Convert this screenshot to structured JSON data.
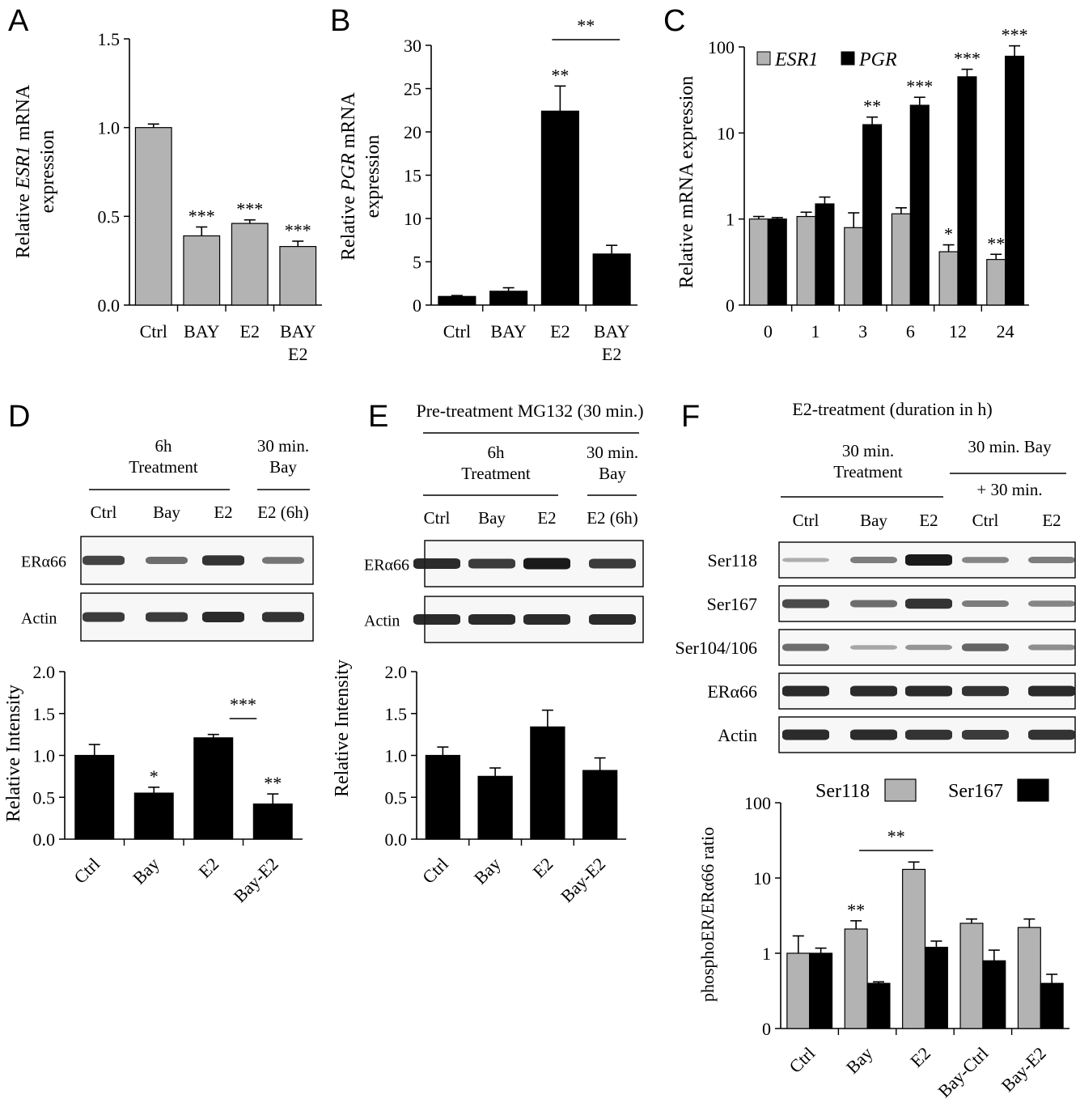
{
  "colors": {
    "gray": "#b3b3b3",
    "black": "#000000",
    "band": "#1a1a1a"
  },
  "chart_data": [
    {
      "id": "A",
      "panel_letter": "A",
      "type": "bar",
      "categories": [
        "Ctrl",
        "BAY",
        "E2",
        "BAY\nE2"
      ],
      "values": [
        1.0,
        0.39,
        0.46,
        0.33
      ],
      "errors": [
        0.02,
        0.05,
        0.02,
        0.03
      ],
      "colors": [
        "#b3b3b3",
        "#b3b3b3",
        "#b3b3b3",
        "#b3b3b3"
      ],
      "annotations": [
        "",
        "***",
        "***",
        "***"
      ],
      "ylabel_parts": [
        "Relative ",
        "ESR1",
        " mRNA"
      ],
      "ylabel_line2": "expression",
      "ylim": [
        0,
        1.5
      ],
      "ticks": [
        0,
        0.5,
        1.0,
        1.5
      ],
      "tick_labels": [
        "0.0",
        "0.5",
        "1.0",
        "1.5"
      ],
      "scale": "linear"
    },
    {
      "id": "B",
      "panel_letter": "B",
      "type": "bar",
      "categories": [
        "Ctrl",
        "BAY",
        "E2",
        "BAY\nE2"
      ],
      "values": [
        1.0,
        1.6,
        22.4,
        5.9
      ],
      "errors": [
        0.1,
        0.4,
        2.9,
        1.0
      ],
      "colors": [
        "#000000",
        "#000000",
        "#000000",
        "#000000"
      ],
      "annotations": [
        "",
        "",
        "**",
        ""
      ],
      "bracket": {
        "from": 2,
        "to": 3,
        "label": "**"
      },
      "ylabel_parts": [
        "Relative ",
        "PGR",
        " mRNA"
      ],
      "ylabel_line2": "expression",
      "ylim": [
        0,
        30
      ],
      "ticks": [
        0,
        5,
        10,
        15,
        20,
        25,
        30
      ],
      "tick_labels": [
        "0",
        "5",
        "10",
        "15",
        "20",
        "25",
        "30"
      ],
      "scale": "linear"
    },
    {
      "id": "C",
      "panel_letter": "C",
      "type": "bar",
      "scale": "log-like",
      "categories": [
        "0",
        "1",
        "3",
        "6",
        "12",
        "24"
      ],
      "series": [
        {
          "name": "ESR1",
          "color": "#b3b3b3",
          "values": [
            1.0,
            1.07,
            0.9,
            1.15,
            0.62,
            0.53
          ],
          "errors": [
            0.07,
            0.13,
            0.28,
            0.2,
            0.08,
            0.06
          ],
          "annotations": [
            "",
            "",
            "",
            "",
            "*",
            "**"
          ]
        },
        {
          "name": "PGR",
          "color": "#000000",
          "values": [
            1.0,
            1.5,
            12.5,
            21,
            45,
            78
          ],
          "errors": [
            0.04,
            0.3,
            2.8,
            5,
            10,
            25
          ],
          "annotations": [
            "",
            "",
            "**",
            "***",
            "***",
            "***"
          ]
        }
      ],
      "ylabel": "Relative  mRNA expression",
      "ticks": [
        0,
        1,
        10,
        100
      ],
      "tick_labels": [
        "0",
        "1",
        "10",
        "100"
      ]
    },
    {
      "id": "D",
      "panel_letter": "D",
      "type": "bar",
      "categories": [
        "Ctrl",
        "Bay",
        "E2",
        "Bay-E2"
      ],
      "values": [
        1.0,
        0.55,
        1.21,
        0.42
      ],
      "errors": [
        0.13,
        0.07,
        0.04,
        0.12
      ],
      "colors": [
        "#000000",
        "#000000",
        "#000000",
        "#000000"
      ],
      "annotations": [
        "",
        "*",
        "",
        "**"
      ],
      "bracket": {
        "from": 2,
        "to": 3,
        "label": "***"
      },
      "ylabel": "Relative  Intensity",
      "ylim": [
        0,
        2.0
      ],
      "ticks": [
        0,
        0.5,
        1.0,
        1.5,
        2.0
      ],
      "tick_labels": [
        "0.0",
        "0.5",
        "1.0",
        "1.5",
        "2.0"
      ],
      "scale": "linear"
    },
    {
      "id": "E",
      "panel_letter": "E",
      "type": "bar",
      "categories": [
        "Ctrl",
        "Bay",
        "E2",
        "Bay-E2"
      ],
      "values": [
        1.0,
        0.75,
        1.34,
        0.82
      ],
      "errors": [
        0.1,
        0.1,
        0.2,
        0.15
      ],
      "colors": [
        "#000000",
        "#000000",
        "#000000",
        "#000000"
      ],
      "annotations": [
        "",
        "",
        "",
        ""
      ],
      "ylabel": "Relative  Intensity",
      "ylim": [
        0,
        2.0
      ],
      "ticks": [
        0,
        0.5,
        1.0,
        1.5,
        2.0
      ],
      "tick_labels": [
        "0.0",
        "0.5",
        "1.0",
        "1.5",
        "2.0"
      ],
      "scale": "linear"
    },
    {
      "id": "F",
      "panel_letter": "F",
      "type": "bar",
      "scale": "log-like",
      "categories": [
        "Ctrl",
        "Bay",
        "E2",
        "Bay-Ctrl",
        "Bay-E2"
      ],
      "series": [
        {
          "name": "Ser118",
          "color": "#b3b3b3",
          "values": [
            1.0,
            2.1,
            13,
            2.5,
            2.2
          ],
          "errors": [
            0.7,
            0.6,
            3.3,
            0.35,
            0.65
          ],
          "annotations": [
            "",
            "**",
            "",
            "",
            ""
          ]
        },
        {
          "name": "Ser167",
          "color": "#000000",
          "values": [
            1.0,
            0.6,
            1.2,
            0.9,
            0.6
          ],
          "errors": [
            0.17,
            0.02,
            0.25,
            0.2,
            0.12
          ],
          "annotations": [
            "",
            "",
            "",
            "",
            ""
          ]
        }
      ],
      "bracket": {
        "from": 1,
        "to": 2,
        "label": "**"
      },
      "ylabel": "phosphoER/ERα66  ratio",
      "ticks": [
        0,
        1,
        10,
        100
      ],
      "tick_labels": [
        "0",
        "1",
        "10",
        "100"
      ]
    }
  ],
  "blots": {
    "D": {
      "group1": "6h\nTreatment",
      "group2": "30 min.\nBay",
      "lanes": [
        "Ctrl",
        "Bay",
        "E2",
        "E2 (6h)"
      ],
      "rows": [
        {
          "label": "ERα66",
          "intensity": [
            0.75,
            0.5,
            0.85,
            0.45
          ]
        },
        {
          "label": "Actin",
          "intensity": [
            0.8,
            0.8,
            0.9,
            0.85
          ]
        }
      ]
    },
    "E": {
      "header": "Pre-treatment MG132 (30 min.)",
      "group1": "6h\nTreatment",
      "group2": "30 min.\nBay",
      "lanes": [
        "Ctrl",
        "Bay",
        "E2",
        "E2 (6h)"
      ],
      "rows": [
        {
          "label": "ERα66",
          "intensity": [
            0.9,
            0.8,
            1.0,
            0.8
          ]
        },
        {
          "label": "Actin",
          "intensity": [
            0.9,
            0.9,
            0.9,
            0.9
          ]
        }
      ]
    },
    "F": {
      "header": "E2-treatment  (duration  in h)",
      "group1": "30 min.\nTreatment",
      "group2": "30 min. Bay",
      "group2b": "+ 30 min.",
      "lanes": [
        "Ctrl",
        "Bay",
        "E2",
        "Ctrl",
        "E2"
      ],
      "rows": [
        {
          "label": "Ser118",
          "intensity": [
            0.1,
            0.4,
            1.0,
            0.35,
            0.4
          ]
        },
        {
          "label": "Ser167",
          "intensity": [
            0.7,
            0.5,
            0.85,
            0.4,
            0.35
          ]
        },
        {
          "label": "Ser104/106",
          "intensity": [
            0.5,
            0.15,
            0.25,
            0.55,
            0.3
          ]
        },
        {
          "label": "ERα66",
          "intensity": [
            0.9,
            0.9,
            0.9,
            0.85,
            0.9
          ]
        },
        {
          "label": "Actin",
          "intensity": [
            0.9,
            0.9,
            0.85,
            0.8,
            0.85
          ]
        }
      ]
    }
  }
}
